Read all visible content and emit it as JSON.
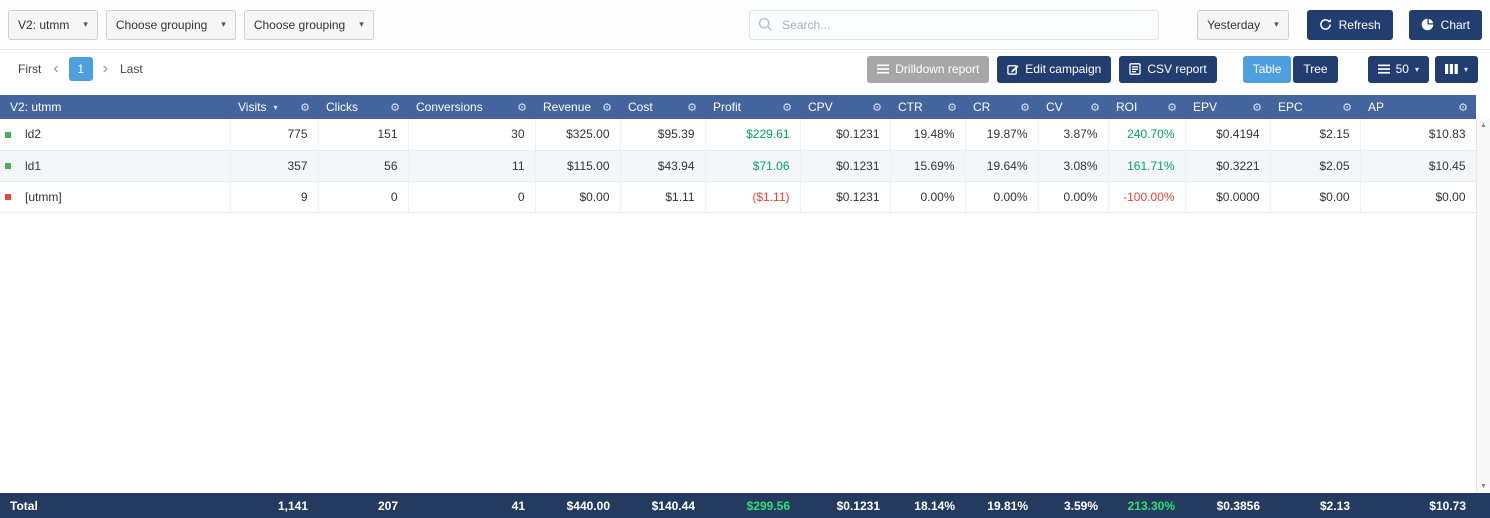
{
  "toolbar": {
    "campaign_select": {
      "value": "V2: utmm"
    },
    "grouping_select_1": {
      "value": "Choose grouping"
    },
    "grouping_select_2": {
      "value": "Choose grouping"
    },
    "search": {
      "placeholder": "Search..."
    },
    "date_select": {
      "value": "Yesterday"
    },
    "refresh_button": "Refresh",
    "chart_button": "Chart"
  },
  "pagination": {
    "first_label": "First",
    "current_page": "1",
    "last_label": "Last"
  },
  "actions": {
    "drilldown_button": "Drilldown report",
    "edit_button": "Edit campaign",
    "csv_button": "CSV report",
    "table_toggle": "Table",
    "tree_toggle": "Tree",
    "rows_per_page": "50"
  },
  "colors": {
    "positive": "#00a65a",
    "positive_on_dark": "#2ee06f",
    "negative": "#e8443a",
    "header_bg": "#44649e",
    "total_bg": "#243a5e",
    "accent_blue": "#4d9fe0",
    "navy_button": "#223d70"
  },
  "table": {
    "name_header": "V2: utmm",
    "columns": [
      {
        "label": "Visits",
        "sorted": true
      },
      {
        "label": "Clicks"
      },
      {
        "label": "Conversions"
      },
      {
        "label": "Revenue"
      },
      {
        "label": "Cost"
      },
      {
        "label": "Profit"
      },
      {
        "label": "CPV"
      },
      {
        "label": "CTR"
      },
      {
        "label": "CR"
      },
      {
        "label": "CV"
      },
      {
        "label": "ROI"
      },
      {
        "label": "EPV"
      },
      {
        "label": "EPC"
      },
      {
        "label": "AP"
      }
    ],
    "rows": [
      {
        "status": "green",
        "name": "ld2",
        "values": [
          "775",
          "151",
          "30",
          "$325.00",
          "$95.39",
          "$229.61",
          "$0.1231",
          "19.48%",
          "19.87%",
          "3.87%",
          "240.70%",
          "$0.4194",
          "$2.15",
          "$10.83"
        ]
      },
      {
        "status": "green",
        "name": "ld1",
        "values": [
          "357",
          "56",
          "11",
          "$115.00",
          "$43.94",
          "$71.06",
          "$0.1231",
          "15.69%",
          "19.64%",
          "3.08%",
          "161.71%",
          "$0.3221",
          "$2.05",
          "$10.45"
        ]
      },
      {
        "status": "red",
        "name": "[utmm]",
        "values": [
          "9",
          "0",
          "0",
          "$0.00",
          "$1.11",
          "($1.11)",
          "$0.1231",
          "0.00%",
          "0.00%",
          "0.00%",
          "-100.00%",
          "$0.0000",
          "$0.00",
          "$0.00"
        ]
      }
    ],
    "total": {
      "label": "Total",
      "values": [
        "1,141",
        "207",
        "41",
        "$440.00",
        "$140.44",
        "$299.56",
        "$0.1231",
        "18.14%",
        "19.81%",
        "3.59%",
        "213.30%",
        "$0.3856",
        "$2.13",
        "$10.73"
      ]
    }
  }
}
